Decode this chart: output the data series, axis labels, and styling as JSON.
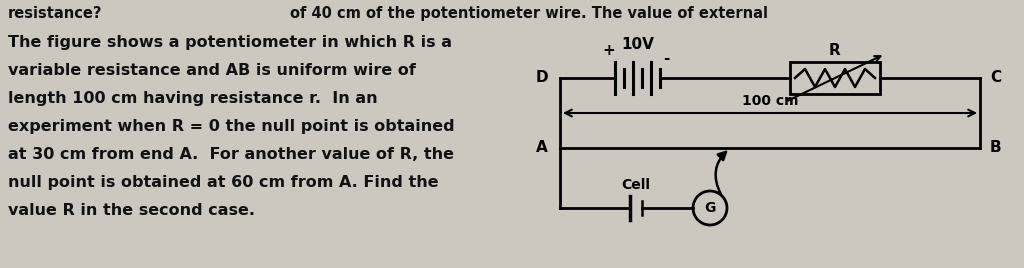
{
  "background_color": "#ccc8c0",
  "top_text_left": "resistance?",
  "top_text_right": "of 40 cm of the potentiometer wire. The value of external",
  "main_text_lines": [
    "The figure shows a potentiometer in which R is a",
    "variable resistance and AB is uniform wire of",
    "length 100 cm having resistance r.  In an",
    "experiment when R = 0 the null point is obtained",
    "at 30 cm from end A.  For another value of R, the",
    "null point is obtained at 60 cm from A. Find the",
    "value R in the second case."
  ],
  "circuit": {
    "label_10V": "10V",
    "label_R": "R",
    "label_D": "D",
    "label_C": "C",
    "label_A": "A",
    "label_B": "B",
    "label_100cm": "100 cm",
    "label_Cell": "Cell",
    "label_G": "G",
    "label_plus": "+",
    "label_minus": "-"
  },
  "font_size_main": 11.5,
  "font_size_top": 10.5,
  "text_color": "#111111",
  "fig_width": 10.24,
  "fig_height": 2.68,
  "dpi": 100
}
